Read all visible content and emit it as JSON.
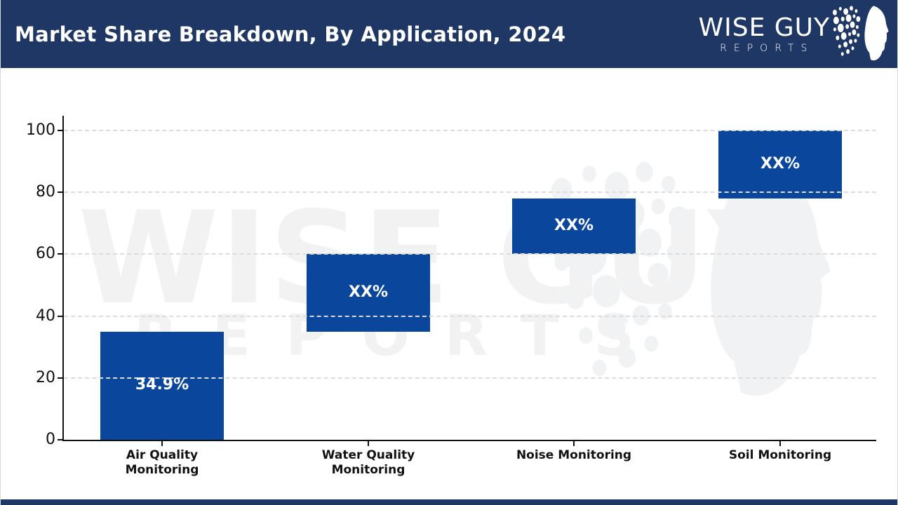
{
  "header": {
    "title": "Market Share Breakdown, By Application, 2024",
    "bg_color": "#1F3764",
    "logo": {
      "line1": "WISE GUY",
      "line2": "REPORTS"
    }
  },
  "watermark": {
    "line1": "WISE GUY",
    "line2": "REPORTS"
  },
  "chart_data": {
    "type": "bar",
    "subtype": "waterfall",
    "title": "Market Share Breakdown, By Application, 2024",
    "categories": [
      "Air Quality Monitoring",
      "Water Quality Monitoring",
      "Noise Monitoring",
      "Soil Monitoring"
    ],
    "category_lines": [
      [
        "Air Quality",
        "Monitoring"
      ],
      [
        "Water Quality",
        "Monitoring"
      ],
      [
        "Noise Monitoring"
      ],
      [
        "Soil Monitoring"
      ]
    ],
    "segments": [
      {
        "category": "Air Quality Monitoring",
        "start": 0,
        "end": 34.9,
        "label": "34.9%"
      },
      {
        "category": "Water Quality Monitoring",
        "start": 34.9,
        "end": 60,
        "label": "XX%"
      },
      {
        "category": "Noise Monitoring",
        "start": 60,
        "end": 78,
        "label": "XX%"
      },
      {
        "category": "Soil Monitoring",
        "start": 78,
        "end": 100,
        "label": "XX%"
      }
    ],
    "xlabel": "",
    "ylabel": "",
    "ylim": [
      0,
      100
    ],
    "yticks": [
      0,
      20,
      40,
      60,
      80,
      100
    ],
    "grid": "horizontal-dashed",
    "legend": "none",
    "bar_color": "#0A469B",
    "bar_label_color": "#FFFFFF",
    "grid_color": "#DCDCDC",
    "axis_color": "#111111"
  },
  "footer": {
    "bar_color": "#1F3764"
  }
}
